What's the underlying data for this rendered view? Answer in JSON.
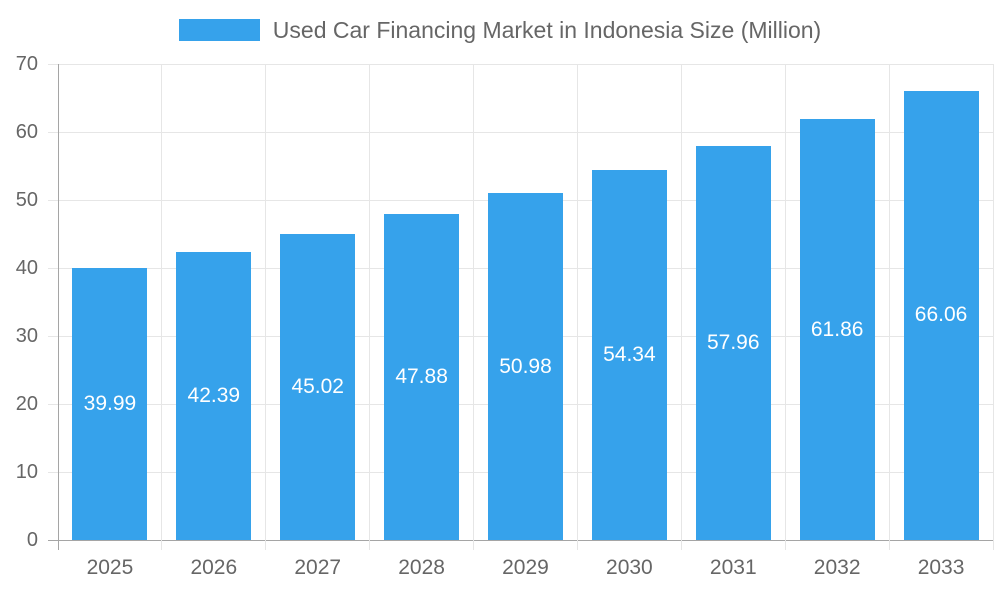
{
  "chart_data": {
    "type": "bar",
    "title": "Used Car Financing Market in Indonesia Size (Million)",
    "legend": [
      "Used Car Financing Market in Indonesia Size (Million)"
    ],
    "legend_position": "top",
    "categories": [
      "2025",
      "2026",
      "2027",
      "2028",
      "2029",
      "2030",
      "2031",
      "2032",
      "2033"
    ],
    "values": [
      39.99,
      42.39,
      45.02,
      47.88,
      50.98,
      54.34,
      57.96,
      61.86,
      66.06
    ],
    "value_labels": [
      "39.99",
      "42.39",
      "45.02",
      "47.88",
      "50.98",
      "54.34",
      "57.96",
      "61.86",
      "66.06"
    ],
    "xlabel": "",
    "ylabel": "",
    "ylim": [
      0,
      70
    ],
    "yticks": [
      0,
      10,
      20,
      30,
      40,
      50,
      60,
      70
    ],
    "grid": true,
    "colors": {
      "bar": "#36A2EB",
      "grid_line": "#e6e6e6",
      "axis_line": "#a5a5a5",
      "tick_label": "#666666",
      "legend_text": "#666666",
      "value_label": "#ffffff",
      "background": "#ffffff"
    }
  }
}
